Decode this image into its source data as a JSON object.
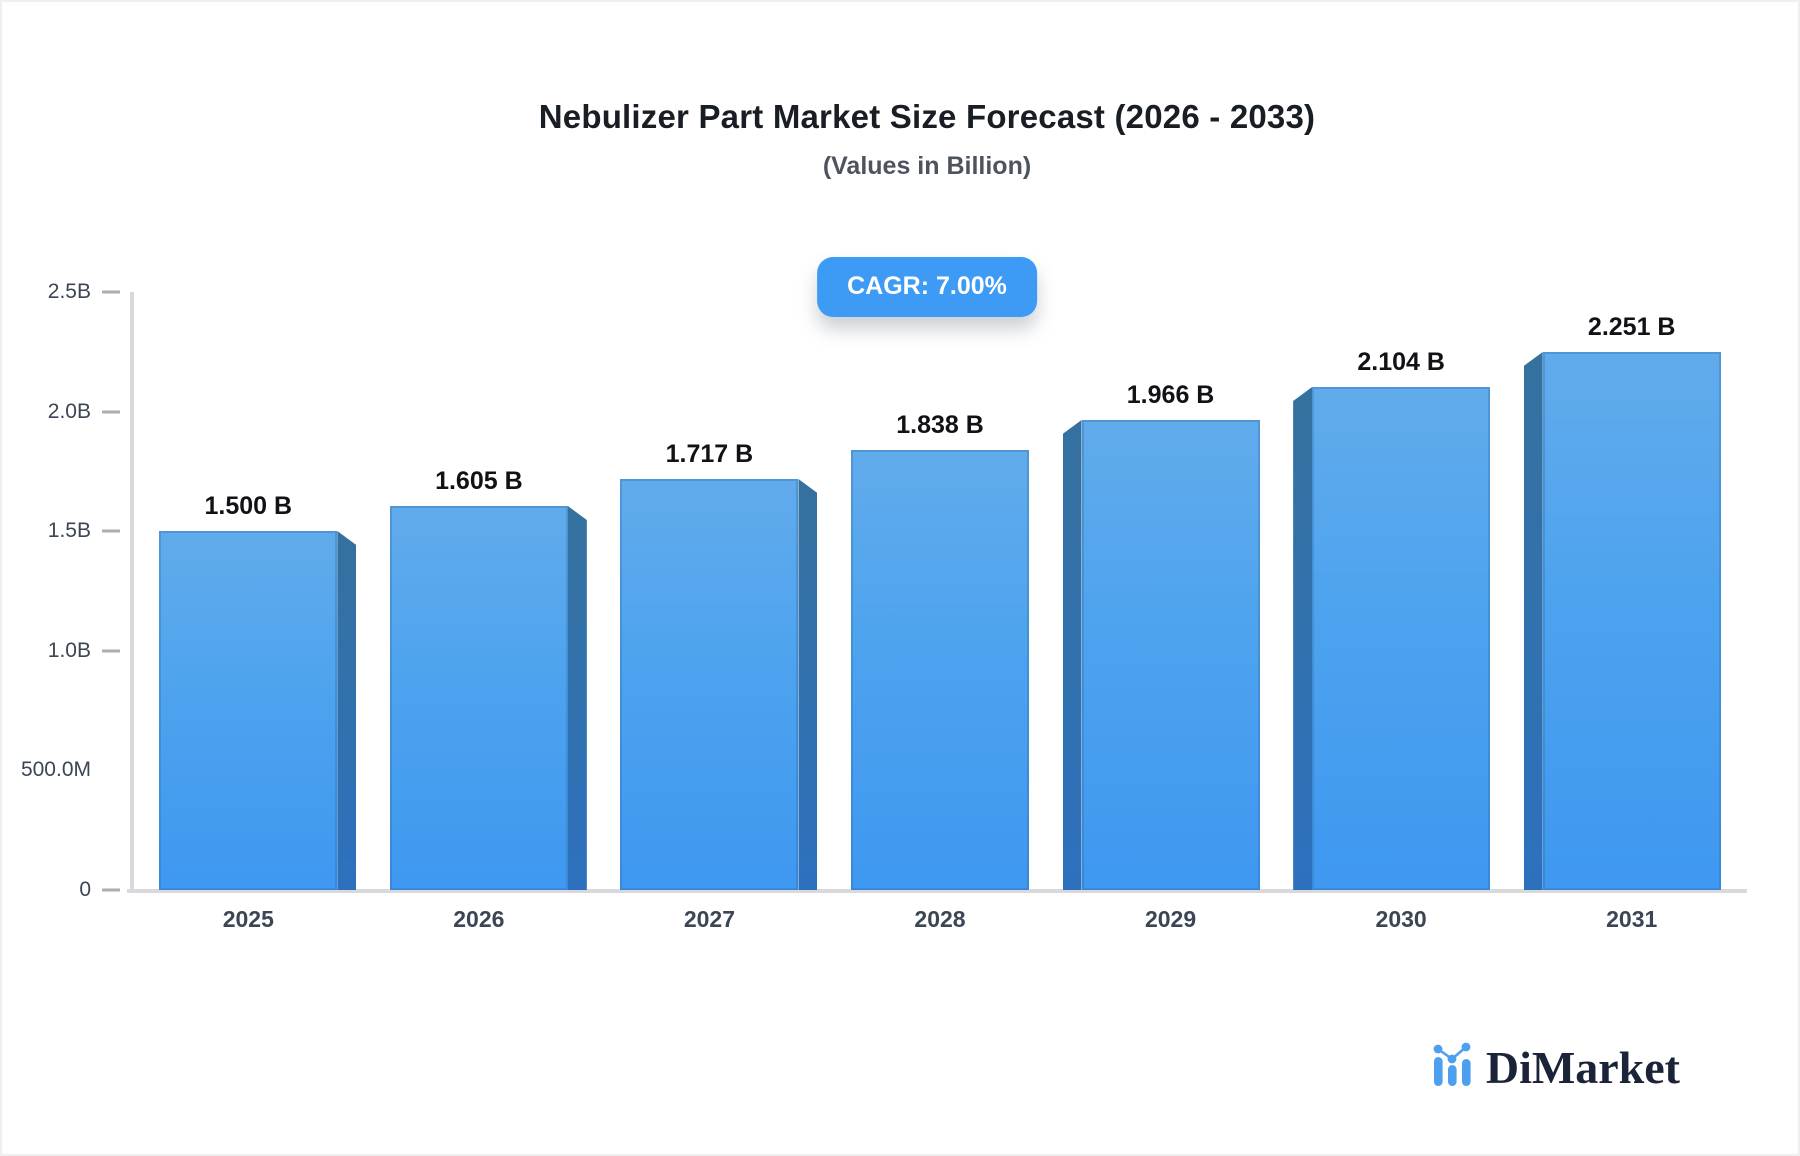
{
  "title": "Nebulizer Part Market Size Forecast (2026 - 2033)",
  "subtitle": "(Values in Billion)",
  "badge": {
    "label": "CAGR: 7.00%"
  },
  "watermark": {
    "brand": "DiMarket",
    "icon": "bar-line-chart-icon"
  },
  "colors": {
    "bar_face_top": "#61abec",
    "bar_face_bottom": "#3f98f1",
    "bar_side": "#2d71be",
    "badge_bg": "#3d9bf6",
    "axis": "#d8d9dd",
    "brand_blue": "#4d9ff0",
    "brand_navy": "#1a2338"
  },
  "chart_data": {
    "type": "bar",
    "categories": [
      "2025",
      "2026",
      "2027",
      "2028",
      "2029",
      "2030",
      "2031"
    ],
    "values": [
      1.5,
      1.605,
      1.717,
      1.838,
      1.966,
      2.104,
      2.251
    ],
    "bar_labels": [
      "1.500 B",
      "1.605 B",
      "1.717 B",
      "1.838 B",
      "1.966 B",
      "2.104 B",
      "2.251 B"
    ],
    "title": "Nebulizer Part Market Size Forecast (2026 - 2033)",
    "subtitle": "(Values in Billion)",
    "annotation": "CAGR: 7.00%",
    "xlabel": "",
    "ylabel": "",
    "ylim": [
      0,
      2.5
    ],
    "unit": "Billion",
    "grid": false,
    "legend": false,
    "style_3d": true,
    "y_ticks": [
      {
        "label": "2.5B",
        "value": 2.5,
        "dash": true
      },
      {
        "label": "2.0B",
        "value": 2.0,
        "dash": true
      },
      {
        "label": "1.5B",
        "value": 1.5,
        "dash": true
      },
      {
        "label": "1.0B",
        "value": 1.0,
        "dash": true
      },
      {
        "label": "500.0M",
        "value": 0.5,
        "dash": false
      },
      {
        "label": "0",
        "value": 0.0,
        "dash": true
      }
    ]
  }
}
